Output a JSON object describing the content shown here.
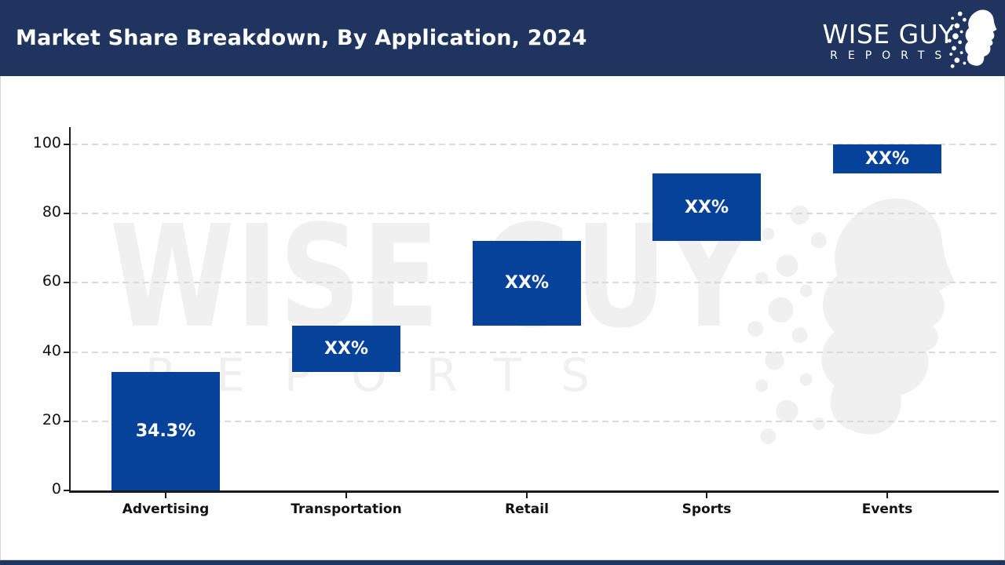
{
  "header": {
    "title": "Market Share Breakdown, By Application, 2024",
    "background": "#1f355f",
    "logo": {
      "line1": "WISE GUY",
      "line2": "REPORTS"
    }
  },
  "watermark": {
    "line1": "WISE GUY",
    "line2": "REPORTS"
  },
  "footer": {
    "color": "#1f355f"
  },
  "chart_data": {
    "type": "bar",
    "subtype": "waterfall",
    "title": "Market Share Breakdown, By Application, 2024",
    "categories": [
      "Advertising",
      "Transportation",
      "Retail",
      "Sports",
      "Events"
    ],
    "segments": [
      {
        "category": "Advertising",
        "start": 0,
        "end": 34.3,
        "label": "34.3%"
      },
      {
        "category": "Transportation",
        "start": 34.3,
        "end": 47.7,
        "label": "XX%"
      },
      {
        "category": "Retail",
        "start": 47.7,
        "end": 72.1,
        "label": "XX%"
      },
      {
        "category": "Sports",
        "start": 72.1,
        "end": 91.5,
        "label": "XX%"
      },
      {
        "category": "Events",
        "start": 91.5,
        "end": 100,
        "label": "XX%"
      }
    ],
    "yticks": [
      0,
      20,
      40,
      60,
      80,
      100
    ],
    "ylim": [
      0,
      105
    ],
    "xlabel": "",
    "ylabel": "",
    "bar_color": "#07429a",
    "label_color": "#ffffff",
    "grid": "horizontal-dashed",
    "legend": "none"
  }
}
